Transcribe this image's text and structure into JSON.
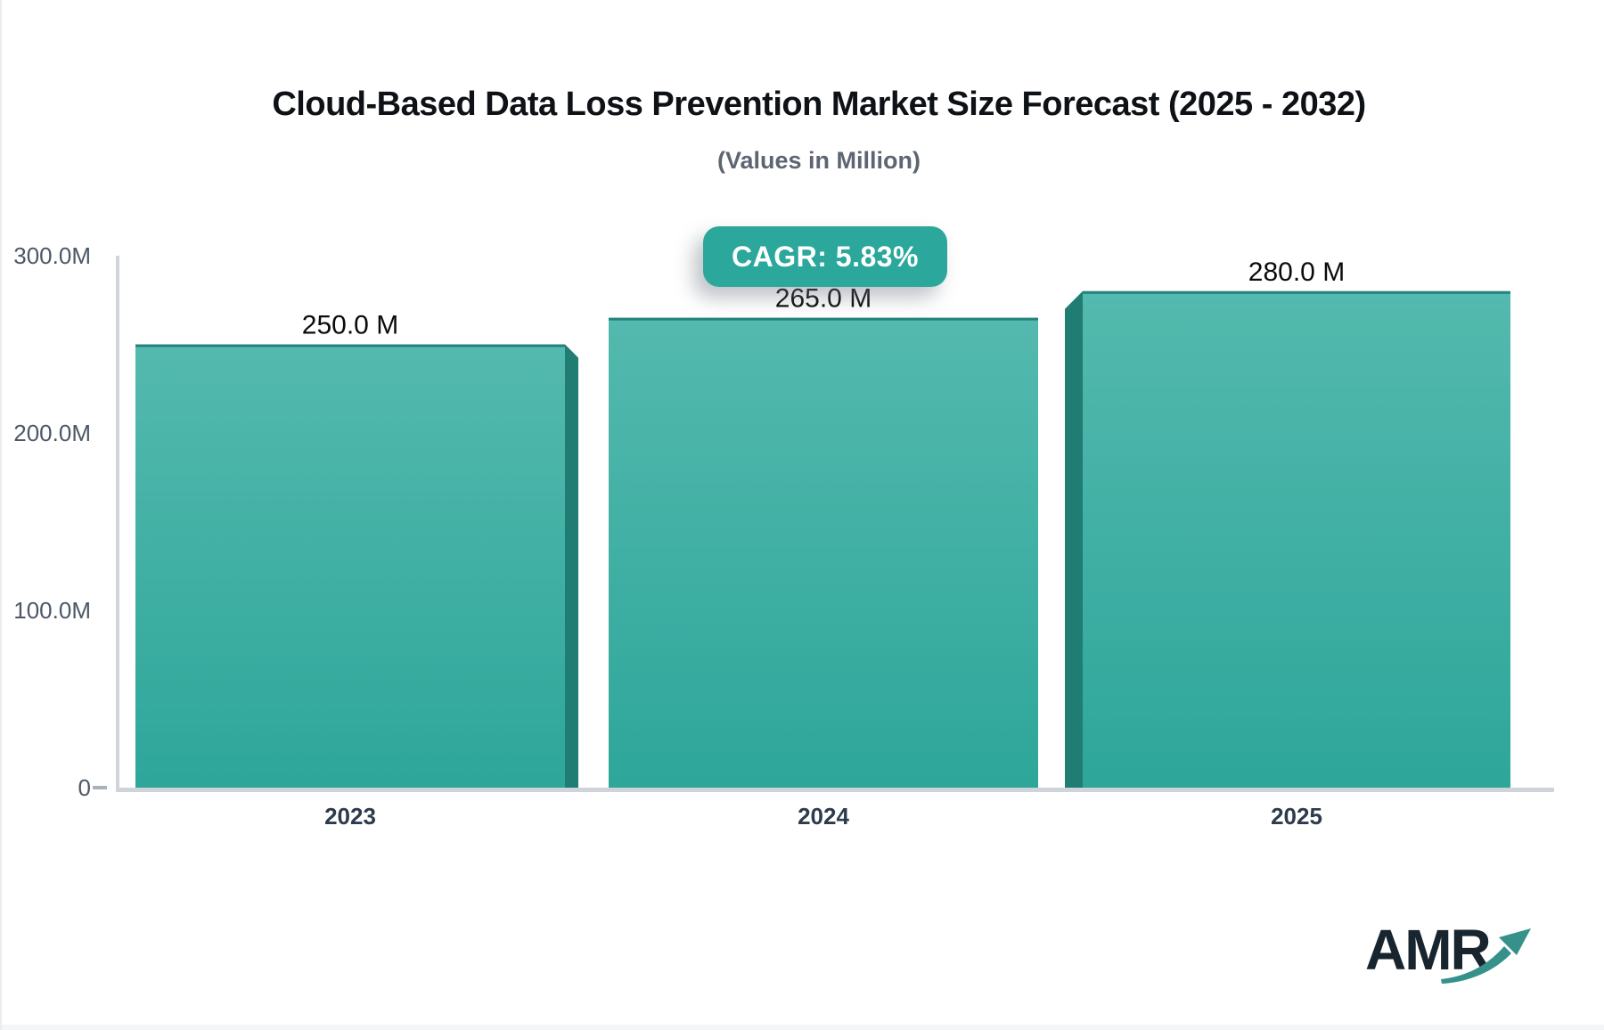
{
  "header": {
    "title": "Cloud-Based Data Loss Prevention Market Size Forecast (2025 - 2032)",
    "subtitle": "(Values in Million)"
  },
  "cagr_badge": {
    "text": "CAGR: 5.83%"
  },
  "chart_data": {
    "type": "bar",
    "title": "Cloud-Based Data Loss Prevention Market Size Forecast (2025 - 2032)",
    "subtitle": "(Values in Million)",
    "unit": "Million",
    "categories": [
      "2023",
      "2024",
      "2025"
    ],
    "values": [
      250.0,
      265.0,
      280.0
    ],
    "bar_labels": [
      "250.0 M",
      "265.0 M",
      "280.0 M"
    ],
    "cagr": "5.83%",
    "ylim": [
      0,
      300
    ],
    "y_ticks": [
      {
        "label": "300.0M",
        "value": 300
      },
      {
        "label": "200.0M",
        "value": 200
      },
      {
        "label": "100.0M",
        "value": 100
      },
      {
        "label": "0",
        "value": 0
      }
    ],
    "grid": false,
    "legend": false,
    "style_3d": true,
    "colors": {
      "bar_top": "#54b9ae",
      "bar_bottom": "#2ea69a",
      "bar_side": "#1f7d74",
      "bar_top_edge": "#23837a",
      "badge": "#2ba79c",
      "axis_line": "#cfd3da",
      "tick_dash": "#aab1bb",
      "tick_label": "#4d5866",
      "category_label": "#2d3b4c",
      "value_label": "#0b0b0b"
    }
  },
  "logo": {
    "text": "AMR",
    "arrow_icon": "growth-arrow-icon"
  }
}
